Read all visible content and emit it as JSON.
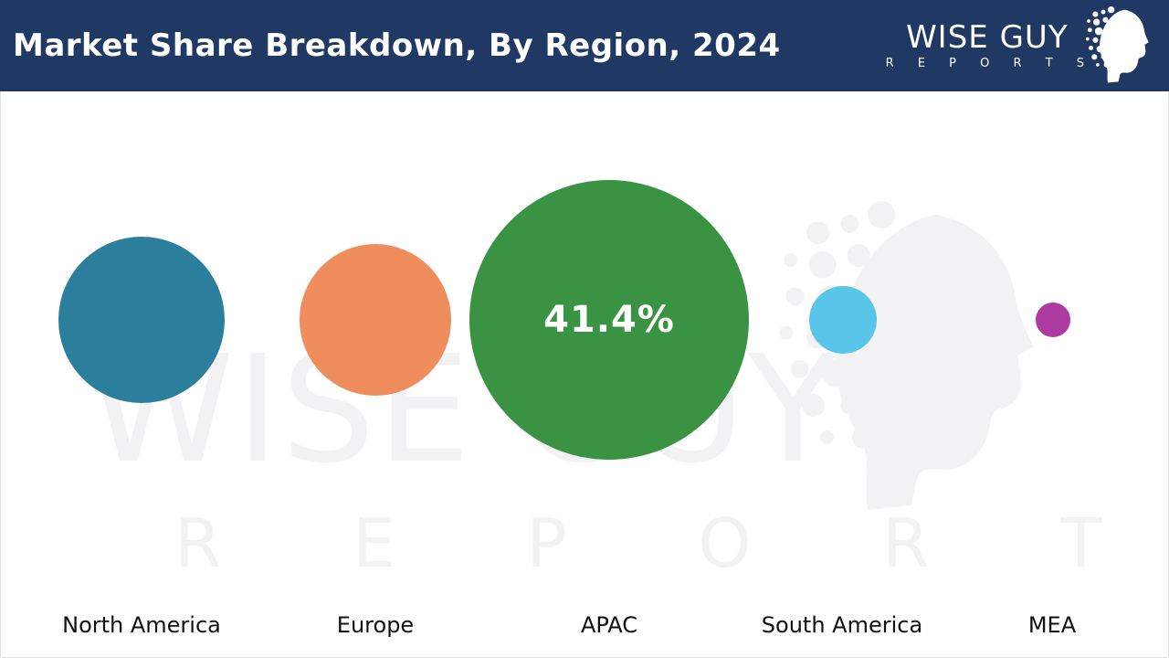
{
  "header": {
    "title": "Market Share Breakdown, By Region, 2024",
    "bg_color": "#1f3864",
    "logo": {
      "line1": "WISE GUY",
      "line2": "R E P O R T S"
    }
  },
  "watermark": {
    "line1": "WISE GUY",
    "line2": "R E P O R T S"
  },
  "chart_data": {
    "type": "bubble",
    "title": "Market Share Breakdown, By Region, 2024",
    "categories": [
      "North America",
      "Europe",
      "APAC",
      "South America",
      "MEA"
    ],
    "bubbles": [
      {
        "label": "North America",
        "color": "#2b7f9c",
        "radius_px": 91,
        "value_label": ""
      },
      {
        "label": "Europe",
        "color": "#f08d5c",
        "radius_px": 83,
        "value_label": ""
      },
      {
        "label": "APAC",
        "color": "#3a9342",
        "radius_px": 153,
        "value_label": "41.4%"
      },
      {
        "label": "South America",
        "color": "#58c5e9",
        "radius_px": 37,
        "value_label": ""
      },
      {
        "label": "MEA",
        "color": "#ad3aa0",
        "radius_px": 19,
        "value_label": ""
      }
    ],
    "value_labels_visible": [
      "APAC"
    ],
    "legend_position": "bottom-category-labels",
    "grid": false,
    "background": "#ffffff",
    "watermark_color": "#f2f2f5",
    "label_color": "#111111"
  }
}
